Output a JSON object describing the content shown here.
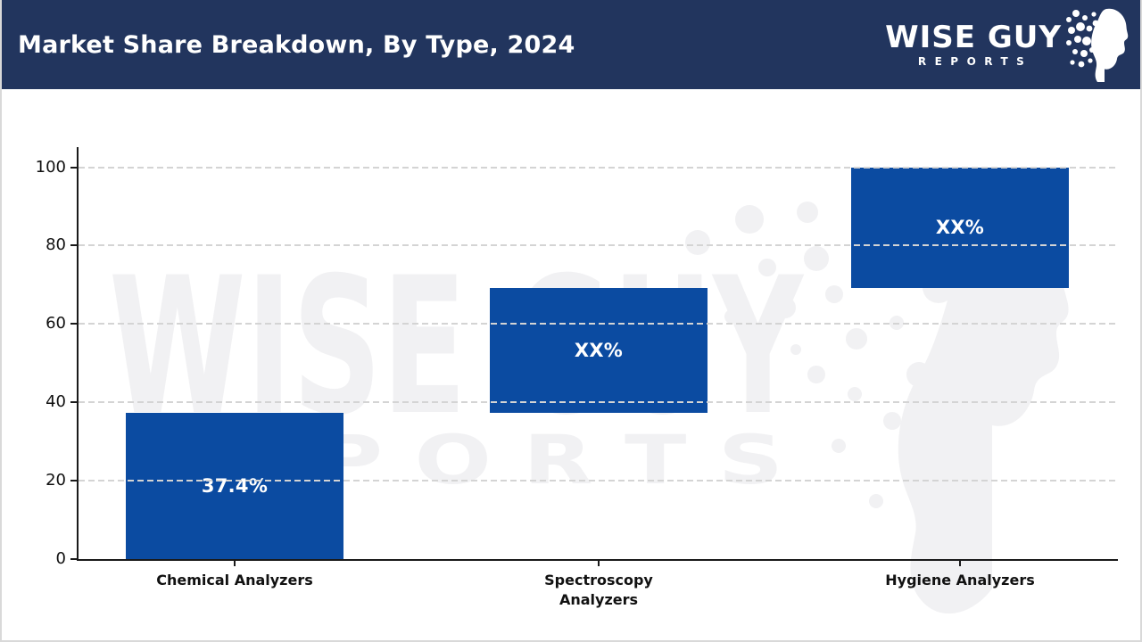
{
  "header": {
    "title": "Market Share Breakdown, By Type, 2024",
    "logo": {
      "line1": "WISE GUY",
      "line2": "REPORTS"
    }
  },
  "watermark": {
    "line1": "WISE GUY",
    "line2": "R E P O R T S"
  },
  "chart_data": {
    "type": "bar",
    "variant": "floating-waterfall",
    "title": "Market Share Breakdown, By Type, 2024",
    "categories": [
      "Chemical Analyzers",
      "Spectroscopy\nAnalyzers",
      "Hygiene Analyzers"
    ],
    "bars": [
      {
        "category": "Chemical Analyzers",
        "start": 0,
        "end": 37.4,
        "label": "37.4%"
      },
      {
        "category": "Spectroscopy Analyzers",
        "start": 37.4,
        "end": 69.2,
        "label": "XX%"
      },
      {
        "category": "Hygiene Analyzers",
        "start": 69.2,
        "end": 100,
        "label": "XX%"
      }
    ],
    "xlabel": "",
    "ylabel": "",
    "ylim": [
      0,
      100
    ],
    "yticks": [
      0,
      20,
      40,
      60,
      80,
      100
    ],
    "grid": "dashed-horizontal-on-top",
    "legend": "none",
    "bar_color": "#0B4BA1",
    "bar_label_color": "#ffffff",
    "axis_color": "#1a1a1a",
    "grid_color": "#d4d4d4",
    "header_color": "#22355E",
    "watermark_color": "#f1f1f3"
  }
}
